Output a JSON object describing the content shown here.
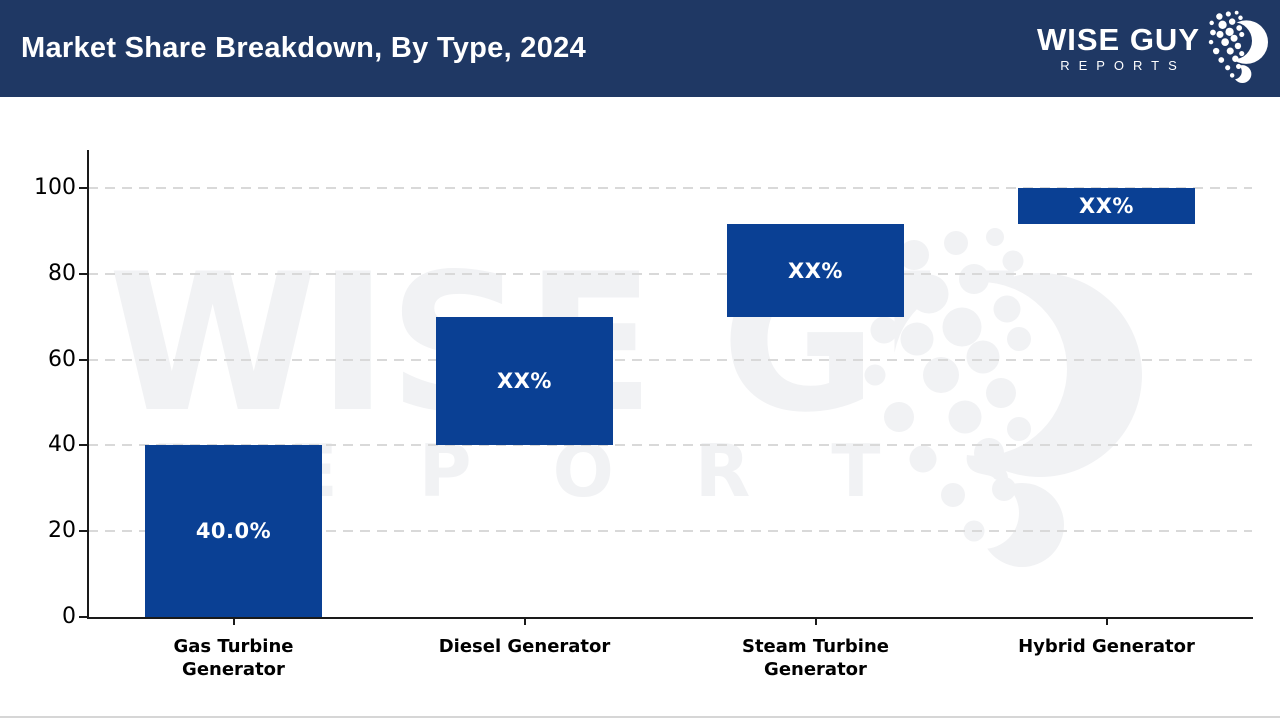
{
  "header": {
    "title": "Market Share Breakdown, By Type, 2024",
    "logo": {
      "name": "WISE GUY",
      "subtitle": "REPORTS"
    }
  },
  "watermark": {
    "line1": "WISE GU",
    "line2": "R E P O R T S"
  },
  "chart_data": {
    "type": "bar",
    "subtype": "waterfall",
    "title": "Market Share Breakdown, By Type, 2024",
    "categories": [
      "Gas Turbine Generator",
      "Diesel Generator",
      "Steam Turbine Generator",
      "Hybrid Generator"
    ],
    "category_lines": [
      [
        "Gas Turbine",
        "Generator"
      ],
      [
        "Diesel Generator"
      ],
      [
        "Steam Turbine",
        "Generator"
      ],
      [
        "Hybrid Generator"
      ]
    ],
    "segments": [
      {
        "category": "Gas Turbine Generator",
        "start": 0,
        "end": 40,
        "label": "40.0%"
      },
      {
        "category": "Diesel Generator",
        "start": 40,
        "end": 70,
        "label": "XX%"
      },
      {
        "category": "Steam Turbine Generator",
        "start": 70,
        "end": 91.5,
        "label": "XX%"
      },
      {
        "category": "Hybrid Generator",
        "start": 91.5,
        "end": 100,
        "label": "XX%"
      }
    ],
    "yticks": [
      0,
      20,
      40,
      60,
      80,
      100
    ],
    "ylim": [
      0,
      100
    ],
    "xlabel": "",
    "ylabel": "",
    "grid": "dashed-horizontal",
    "legend": "none"
  },
  "colors": {
    "header_bg": "#1f3864",
    "bar": "#0a4094",
    "watermark": "#f1f2f4",
    "grid": "#d9d9d9",
    "axis": "#1a1a1a",
    "footer_line": "#d6d6d6"
  }
}
